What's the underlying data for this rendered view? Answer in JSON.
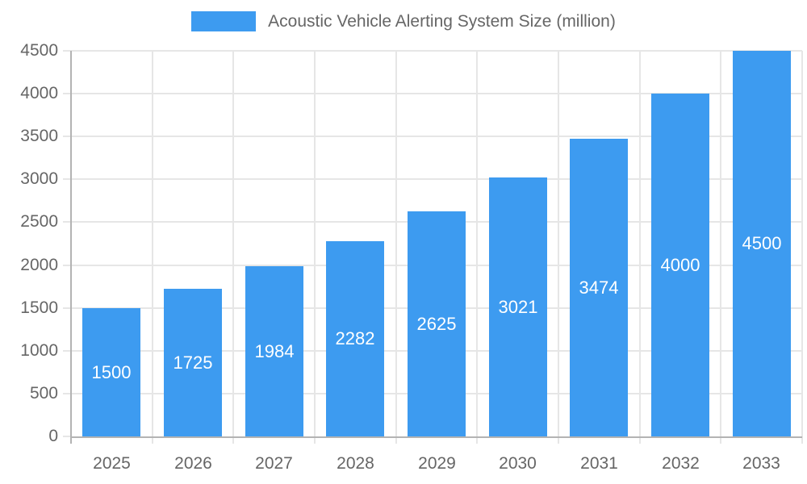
{
  "legend": {
    "label": "Acoustic Vehicle Alerting System Size (million)"
  },
  "chart_data": {
    "type": "bar",
    "title": "Acoustic Vehicle Alerting System Size (million)",
    "series": [
      {
        "name": "Acoustic Vehicle Alerting System Size (million)",
        "values": [
          1500,
          1725,
          1984,
          2282,
          2625,
          3021,
          3474,
          4000,
          4500
        ]
      }
    ],
    "categories": [
      "2025",
      "2026",
      "2027",
      "2028",
      "2029",
      "2030",
      "2031",
      "2032",
      "2033"
    ],
    "xlabel": "",
    "ylabel": "",
    "ylim": [
      0,
      4500
    ],
    "ytick_step": 500,
    "yticks": [
      0,
      500,
      1000,
      1500,
      2000,
      2500,
      3000,
      3500,
      4000,
      4500
    ],
    "grid": true,
    "legend_position": "top",
    "value_label_position": "inside-center",
    "colors": {
      "bar": "#3D9BF0",
      "grid": "#E6E6E6",
      "axis": "#B3B3B3",
      "text": "#666666",
      "value_label": "#FFFFFF",
      "background": "#FFFFFF"
    }
  }
}
